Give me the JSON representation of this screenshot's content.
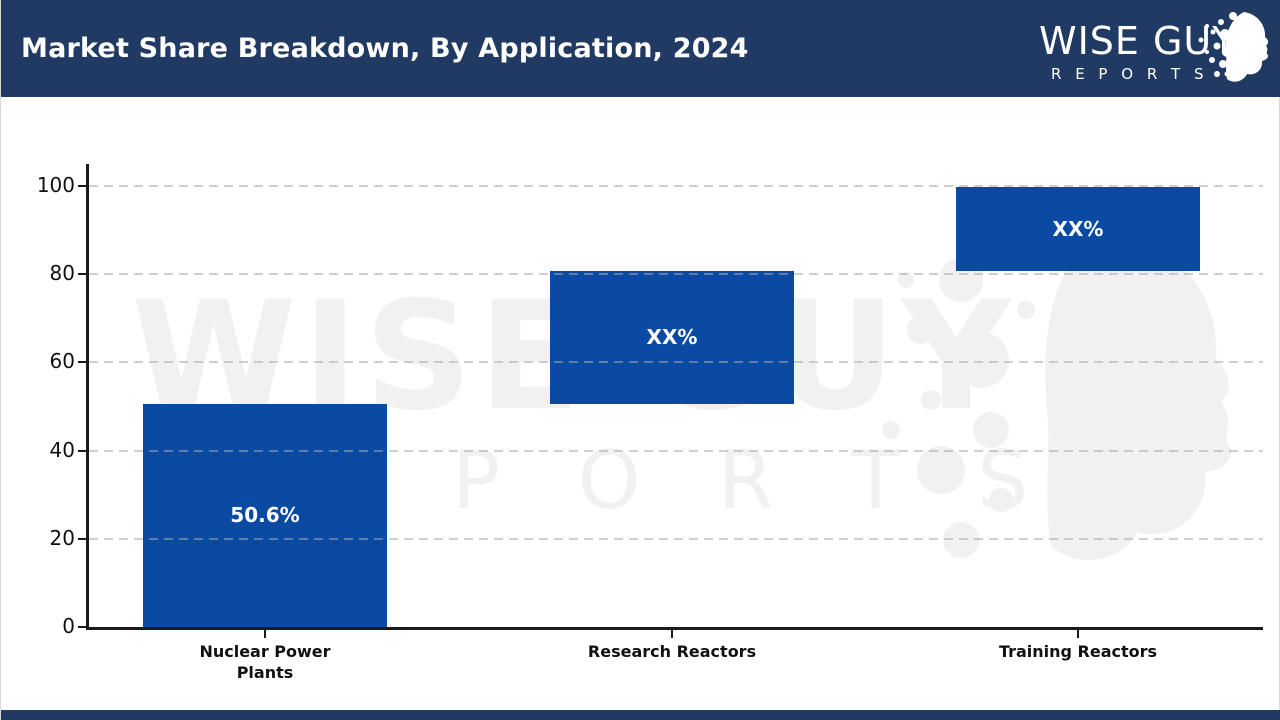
{
  "header": {
    "title": "Market Share Breakdown, By Application, 2024",
    "bg_color": "#213a63",
    "text_color": "#ffffff"
  },
  "logo": {
    "line1": "WISE GUY",
    "line2": "R E P O R T S"
  },
  "watermark": {
    "line1": "WISE GUY",
    "line2": "R E P O R T S"
  },
  "chart_data": {
    "type": "bar",
    "variant": "floating-stacked-percent",
    "title": "Market Share Breakdown, By Application, 2024",
    "unit": "%",
    "categories": [
      "Nuclear Power\nPlants",
      "Research Reactors",
      "Training Reactors"
    ],
    "series": [
      {
        "name": "Market Share",
        "ranges": [
          [
            0,
            50.6
          ],
          [
            50.6,
            80.7
          ],
          [
            80.7,
            99.8
          ]
        ],
        "sizes": [
          50.6,
          30.1,
          19.1
        ]
      }
    ],
    "bar_labels": [
      "50.6%",
      "XX%",
      "XX%"
    ],
    "yticks": [
      0,
      20,
      40,
      60,
      80,
      100
    ],
    "ylim": [
      0,
      105
    ],
    "xlabel": "",
    "ylabel": "",
    "grid": {
      "axis": "y",
      "style": "dashed",
      "color": "#d5d5d5",
      "over_bars": true
    },
    "bar_color": "#0b4aa2",
    "bar_label_color": "#ffffff",
    "axis_color": "#1a1a1a",
    "legend": "none"
  }
}
